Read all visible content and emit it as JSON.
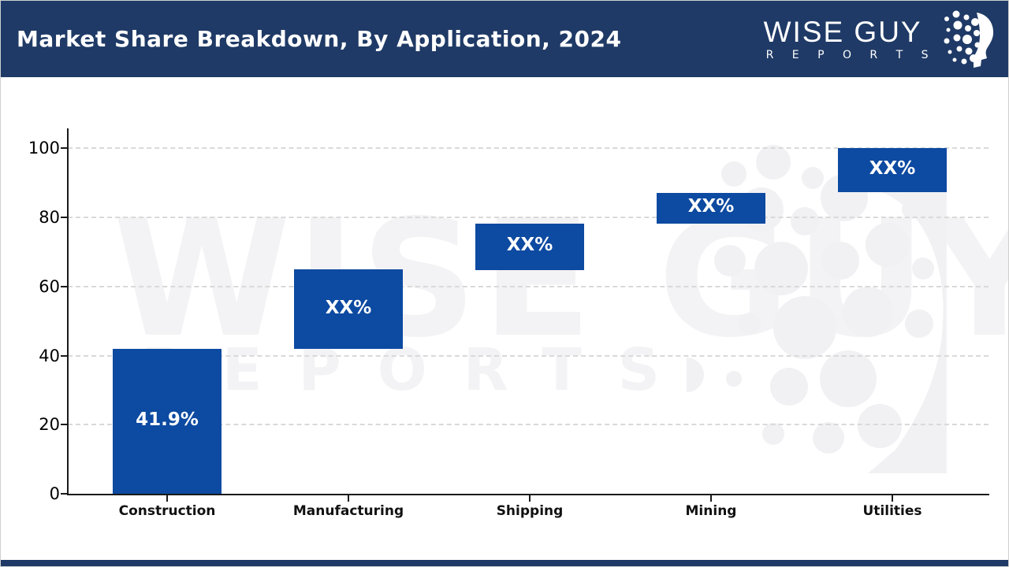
{
  "header": {
    "title": "Market Share Breakdown, By Application, 2024",
    "bg_color": "#1f3a66",
    "logo": {
      "line1": "WISE GUY",
      "line2": "R E P O R T S"
    }
  },
  "watermark": {
    "line1": "WISE GUY",
    "line2": "REPORTS"
  },
  "footer": {
    "bar_color": "#1f3a66"
  },
  "chart_data": {
    "type": "bar",
    "subtype": "waterfall",
    "title": "Market Share Breakdown, By Application, 2024",
    "xlabel": "",
    "ylabel": "",
    "categories": [
      "Construction",
      "Manufacturing",
      "Shipping",
      "Mining",
      "Utilities"
    ],
    "segments": [
      {
        "category": "Construction",
        "start": 0,
        "end": 41.9,
        "label": "41.9%"
      },
      {
        "category": "Manufacturing",
        "start": 41.9,
        "end": 64.9,
        "label": "XX%"
      },
      {
        "category": "Shipping",
        "start": 64.9,
        "end": 78.3,
        "label": "XX%"
      },
      {
        "category": "Mining",
        "start": 78.3,
        "end": 87.2,
        "label": "XX%"
      },
      {
        "category": "Utilities",
        "start": 87.2,
        "end": 100,
        "label": "XX%"
      }
    ],
    "yticks": [
      0,
      20,
      40,
      60,
      80,
      100
    ],
    "ylim": [
      0,
      105.8
    ],
    "grid": "horizontal-dashed",
    "legend": "none",
    "bar_color": "#0d4aa1",
    "bar_label_color": "#ffffff",
    "gridline_color": "#d9d9d9",
    "axis_color": "#1a1a1a"
  }
}
